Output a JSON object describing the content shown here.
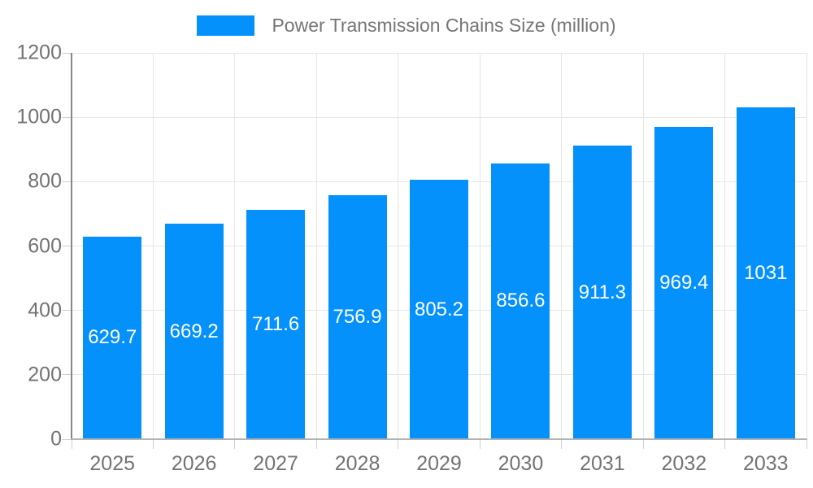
{
  "legend": {
    "label": "Power Transmission Chains Size (million)"
  },
  "colors": {
    "bar": "#0591fb",
    "grid": "#e6e6e6",
    "tick": "#cfcfcf",
    "axis_y": "#878787",
    "axis_x": "#b2b2b2",
    "axis_label": "#737373",
    "legend_label": "#757575",
    "value_label": "#ffffff"
  },
  "chart_data": {
    "type": "bar",
    "title": "Power Transmission Chains Size (million)",
    "categories": [
      "2025",
      "2026",
      "2027",
      "2028",
      "2029",
      "2030",
      "2031",
      "2032",
      "2033"
    ],
    "values": [
      629.7,
      669.2,
      711.6,
      756.9,
      805.2,
      856.6,
      911.3,
      969.4,
      1031
    ],
    "value_labels": [
      "629.7",
      "669.2",
      "711.6",
      "756.9",
      "805.2",
      "856.6",
      "911.3",
      "969.4",
      "1031"
    ],
    "series_name": "Power Transmission Chains Size (million)",
    "xlabel": "",
    "ylabel": "",
    "ylim": [
      0,
      1200
    ],
    "yticks": [
      0,
      200,
      400,
      600,
      800,
      1000,
      1200
    ],
    "grid": true,
    "legend_position": "top",
    "value_label_position": "center-of-bar"
  }
}
